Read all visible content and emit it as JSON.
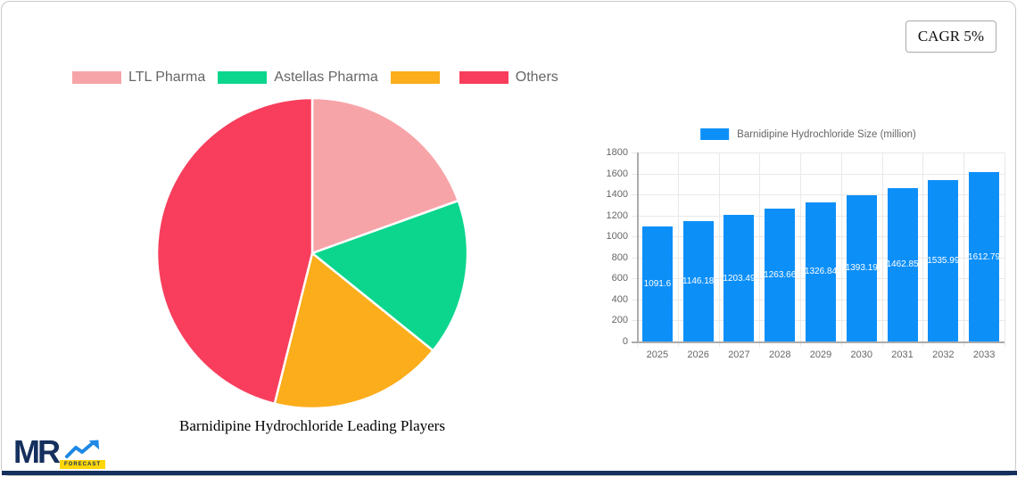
{
  "header": {
    "cagr_label": "CAGR 5%"
  },
  "pie": {
    "title": "Barnidipine Hydrochloride Leading Players",
    "legend": [
      {
        "label": "LTL Pharma",
        "color": "#F7A4A9"
      },
      {
        "label": "Astellas Pharma",
        "color": "#0CD68E"
      },
      {
        "label": "",
        "color": "#FBAD1B"
      },
      {
        "label": "Others",
        "color": "#F83E5C"
      }
    ]
  },
  "chart_data": [
    {
      "type": "pie",
      "title": "Barnidipine Hydrochloride Leading Players",
      "labels": [
        "LTL Pharma",
        "Astellas Pharma",
        "",
        "Others"
      ],
      "values_percent": [
        19.5,
        16.3,
        18.1,
        46.1
      ],
      "colors": [
        "#F7A4A9",
        "#0CD68E",
        "#FBAD1B",
        "#F83E5C"
      ],
      "start_angle": "top",
      "direction": "clockwise",
      "slice_gap_color": "#ffffff",
      "legend_position": "top-left"
    },
    {
      "type": "bar",
      "legend": "Barnidipine Hydrochloride Size (million)",
      "categories": [
        "2025",
        "2026",
        "2027",
        "2028",
        "2029",
        "2030",
        "2031",
        "2032",
        "2033"
      ],
      "values": [
        1091.6,
        1146.18,
        1203.49,
        1263.66,
        1326.84,
        1393.19,
        1462.85,
        1535.99,
        1612.79
      ],
      "bar_color": "#0D8FF8",
      "value_label_color": "#ffffff",
      "ylim": [
        0,
        1800
      ],
      "ytick_step": 200,
      "grid": true,
      "legend_position": "top-center"
    }
  ],
  "logo": {
    "text": "MR",
    "subtext": "FORECAST"
  }
}
